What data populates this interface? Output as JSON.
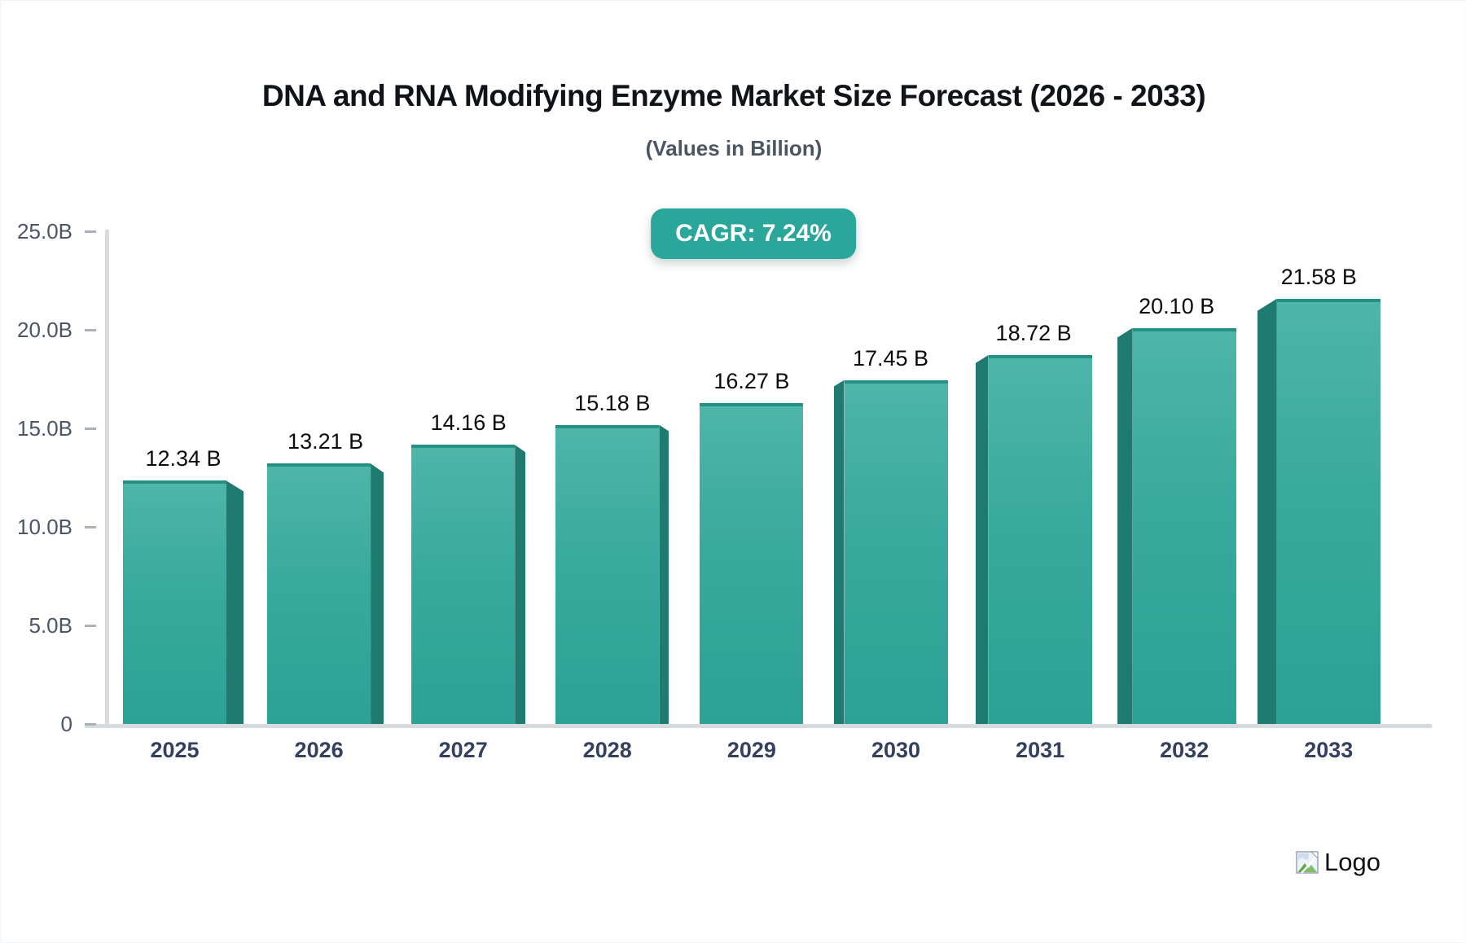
{
  "title": "DNA and RNA Modifying Enzyme Market Size Forecast (2026 - 2033)",
  "subtitle": "(Values in Billion)",
  "badge": {
    "label": "CAGR: 7.24%"
  },
  "footer": {
    "logo_text": "Logo"
  },
  "colors": {
    "accent_teal": "#2aa69a",
    "bar_face_top": "#4eb5a9",
    "bar_face_bottom": "#2ca195",
    "bar_side": "#1f7a70",
    "axis_gray": "#d7dade",
    "axis_label": "#4b5568",
    "x_label": "#33415f"
  },
  "chart_data": {
    "type": "bar",
    "title": "DNA and RNA Modifying Enzyme Market Size Forecast (2026 - 2033)",
    "subtitle": "(Values in Billion)",
    "categories": [
      "2025",
      "2026",
      "2027",
      "2028",
      "2029",
      "2030",
      "2031",
      "2032",
      "2033"
    ],
    "values": [
      12.34,
      13.21,
      14.16,
      15.18,
      16.27,
      17.45,
      18.72,
      20.1,
      21.58
    ],
    "value_labels": [
      "12.34 B",
      "13.21 B",
      "14.16 B",
      "15.18 B",
      "16.27 B",
      "17.45 B",
      "18.72 B",
      "20.10 B",
      "21.58 B"
    ],
    "annotation": "CAGR: 7.24%",
    "xlabel": "",
    "ylabel": "",
    "ylim": [
      0,
      25
    ],
    "y_ticks": [
      {
        "value": 25,
        "label": "25.0B"
      },
      {
        "value": 20,
        "label": "20.0B"
      },
      {
        "value": 15,
        "label": "15.0B"
      },
      {
        "value": 10,
        "label": "10.0B"
      },
      {
        "value": 5,
        "label": "5.0B"
      },
      {
        "value": 0,
        "label": "0"
      }
    ],
    "grid": false,
    "legend": false,
    "style": "3d-perspective-bars, center vanishing point"
  }
}
